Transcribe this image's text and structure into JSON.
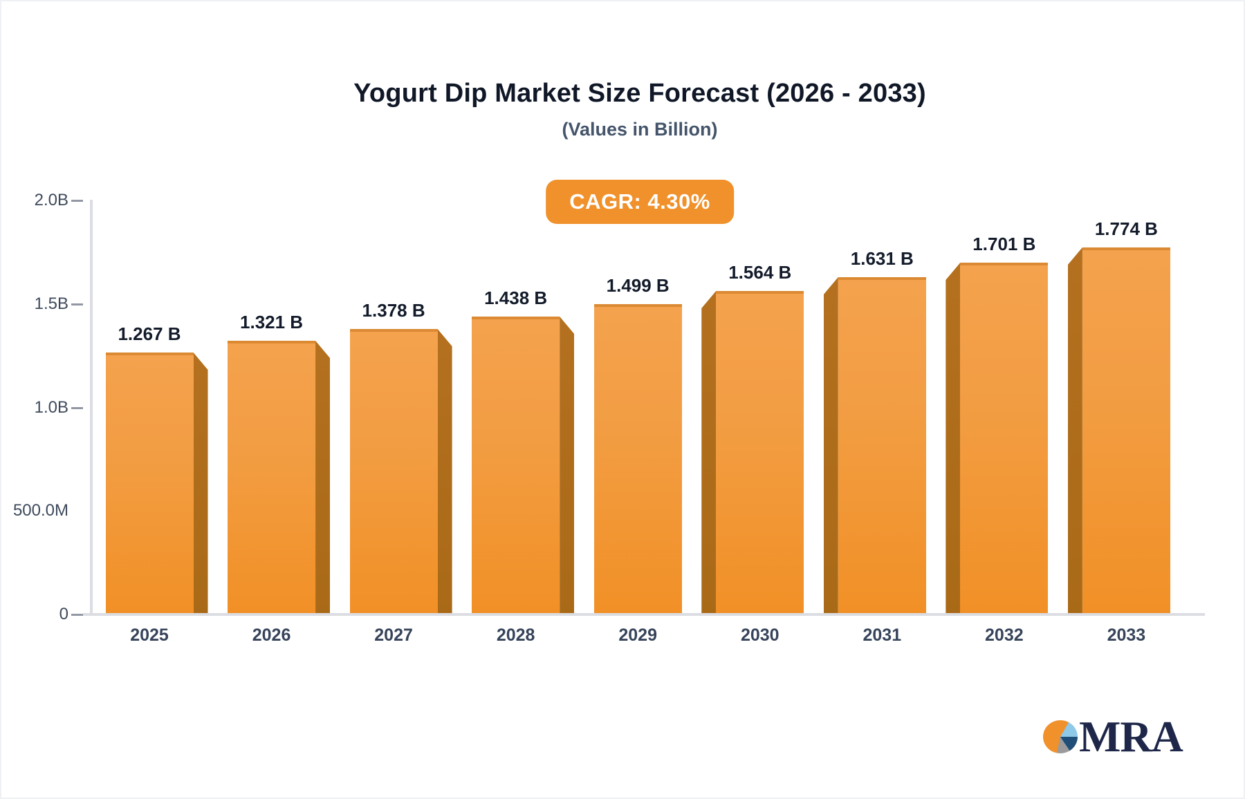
{
  "title": "Yogurt Dip Market Size Forecast (2026 - 2033)",
  "subtitle": "(Values in Billion)",
  "badge": {
    "label": "CAGR: 4.30%",
    "bg_color": "#f0912c",
    "text_color": "#ffffff"
  },
  "logo": {
    "text": "MRA",
    "icon": "pie-chart-icon",
    "text_color": "#1e2749"
  },
  "chart_data": {
    "type": "bar",
    "title": "Yogurt Dip Market Size Forecast (2026 - 2033)",
    "subtitle": "(Values in Billion)",
    "cagr_annotation": "CAGR: 4.30%",
    "categories": [
      "2025",
      "2026",
      "2027",
      "2028",
      "2029",
      "2030",
      "2031",
      "2032",
      "2033"
    ],
    "values": [
      1.267,
      1.321,
      1.378,
      1.438,
      1.499,
      1.564,
      1.631,
      1.701,
      1.774
    ],
    "value_labels": [
      "1.267 B",
      "1.321 B",
      "1.378 B",
      "1.438 B",
      "1.499 B",
      "1.564 B",
      "1.631 B",
      "1.701 B",
      "1.774 B"
    ],
    "unit": "Billion",
    "ylim": [
      0,
      2.0
    ],
    "y_axis": [
      {
        "label": "2.0B",
        "value": 2.0,
        "tick": true
      },
      {
        "label": "1.5B",
        "value": 1.5,
        "tick": true
      },
      {
        "label": "1.0B",
        "value": 1.0,
        "tick": true
      },
      {
        "label": "500.0M",
        "value": 0.5,
        "tick": false
      },
      {
        "label": "0",
        "value": 0.0,
        "tick": true
      }
    ],
    "grid": false,
    "legend": "none",
    "bar_style": "3d",
    "colors": {
      "bar_top": "#f5a24e",
      "bar_bottom": "#f19026",
      "bar_edge": "#db8a33",
      "bar_side": "#b06c1b",
      "axis": "#dbdde3",
      "tick": "#9198a3",
      "value_label": "#131b2a",
      "axis_label": "#3e4a5c"
    }
  }
}
